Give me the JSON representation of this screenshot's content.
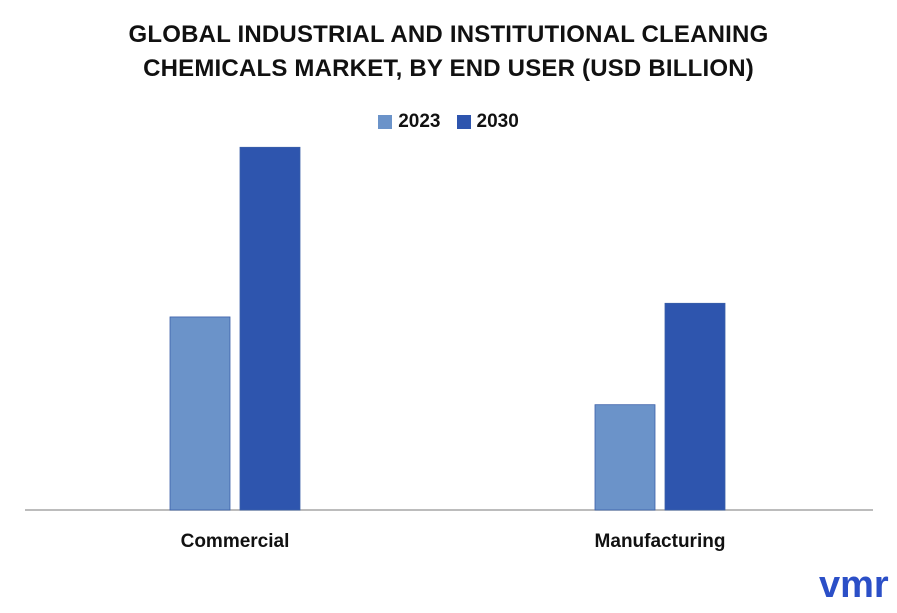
{
  "header": {
    "title_line1": "GLOBAL INDUSTRIAL AND INSTITUTIONAL CLEANING",
    "title_line2": "CHEMICALS MARKET, BY END USER (USD BILLION)"
  },
  "chart_data": {
    "type": "bar",
    "title": "GLOBAL INDUSTRIAL AND INSTITUTIONAL CLEANING CHEMICALS MARKET, BY END USER (USD BILLION)",
    "categories": [
      "Commercial",
      "Manufacturing"
    ],
    "series": [
      {
        "name": "2023",
        "values": [
          49.5,
          27.0
        ],
        "color": "#6b93c9"
      },
      {
        "name": "2030",
        "values": [
          93.0,
          53.0
        ],
        "color": "#2e55ae"
      }
    ],
    "xlabel": "",
    "ylabel": "",
    "ylim": [
      0,
      100
    ],
    "grid": false,
    "legend": "top-center",
    "axis_color": "#a6a6a6"
  },
  "logo": {
    "name": "vmr-logo",
    "text": "vmr",
    "color": "#2b4fc7"
  }
}
